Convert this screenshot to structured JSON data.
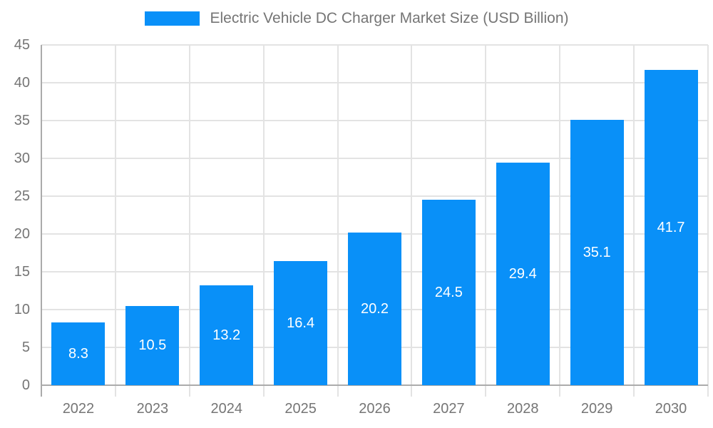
{
  "legend": {
    "label": "Electric Vehicle DC Charger Market Size (USD Billion)",
    "swatch_color": "#0990f8"
  },
  "chart_data": {
    "type": "bar",
    "title": "Electric Vehicle DC Charger Market Size (USD Billion)",
    "series_name": "Electric Vehicle DC Charger Market Size (USD Billion)",
    "categories": [
      "2022",
      "2023",
      "2024",
      "2025",
      "2026",
      "2027",
      "2028",
      "2029",
      "2030"
    ],
    "values": [
      8.3,
      10.5,
      13.2,
      16.4,
      20.2,
      24.5,
      29.4,
      35.1,
      41.7
    ],
    "value_labels": [
      "8.3",
      "10.5",
      "13.2",
      "16.4",
      "20.2",
      "24.5",
      "29.4",
      "35.1",
      "41.7"
    ],
    "xlabel": "",
    "ylabel": "",
    "ylim": [
      0,
      45
    ],
    "yticks": [
      "0",
      "5",
      "10",
      "15",
      "20",
      "25",
      "30",
      "35",
      "40",
      "45"
    ],
    "ytick_step": 5,
    "grid": true,
    "legend_position": "top-center",
    "colors": {
      "bar": "#0990f8",
      "value_label": "#ffffff",
      "axis_text": "#757575",
      "gridline": "#e3e3e3",
      "axis_line": "#ababab",
      "background": "#ffffff"
    }
  }
}
